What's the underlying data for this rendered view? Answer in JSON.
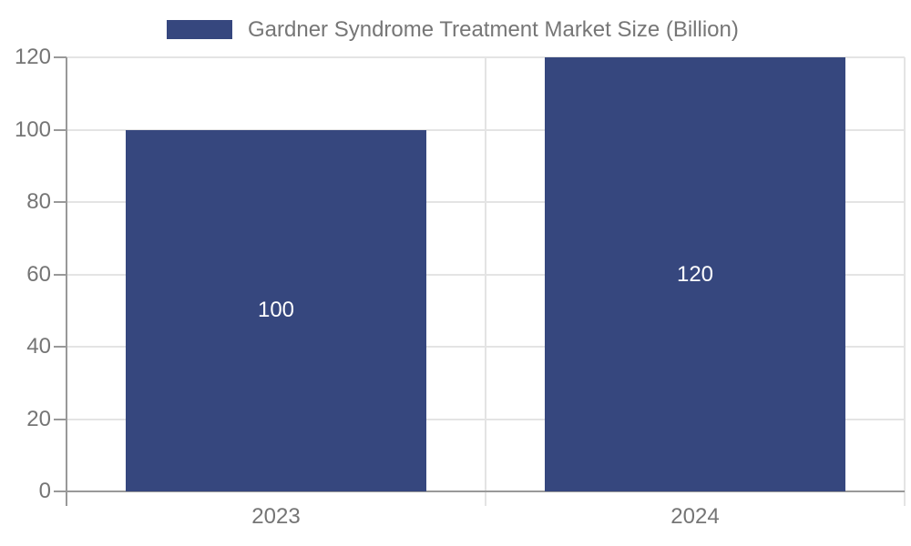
{
  "legend": {
    "label": "Gardner Syndrome Treatment Market Size (Billion)"
  },
  "chart_data": {
    "type": "bar",
    "title": "Gardner Syndrome Treatment Market Size (Billion)",
    "categories": [
      "2023",
      "2024"
    ],
    "series": [
      {
        "name": "Gardner Syndrome Treatment Market Size (Billion)",
        "values": [
          100,
          120
        ]
      }
    ],
    "data_labels": [
      "100",
      "120"
    ],
    "yticks": [
      0,
      20,
      40,
      60,
      80,
      100,
      120
    ],
    "ylim": [
      0,
      120
    ],
    "xlabel": "",
    "ylabel": "",
    "grid": true,
    "legend_position": "top"
  },
  "colors": {
    "bar": "#36477e",
    "grid": "#e4e4e4",
    "axis": "#999999",
    "tick_text": "#757575",
    "legend_text": "#767676",
    "bar_label_text": "#ffffff",
    "background": "#ffffff"
  }
}
